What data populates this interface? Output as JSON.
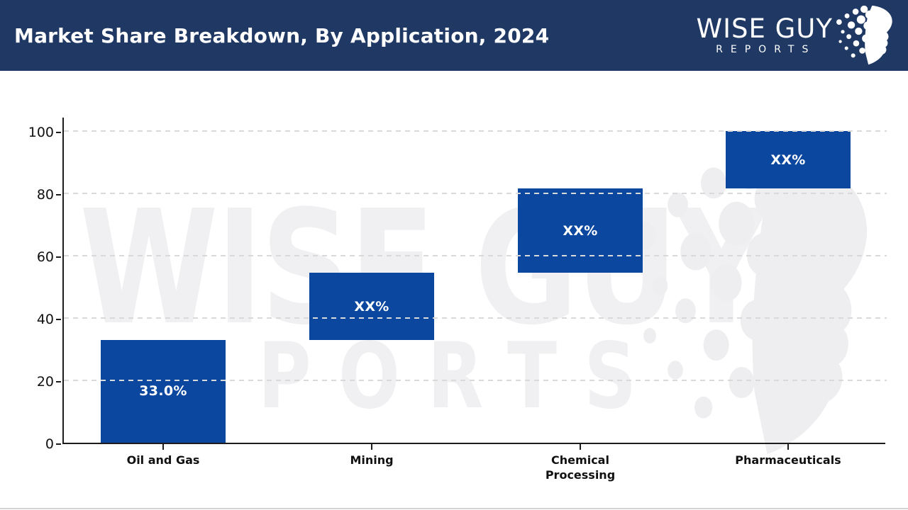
{
  "header": {
    "title": "Market Share Breakdown, By Application, 2024",
    "logo": {
      "line1": "WISE GUY",
      "line2": "REPORTS"
    }
  },
  "watermark": {
    "line1": "WISE GUY",
    "line2": "REPORTS"
  },
  "colors": {
    "header_bg": "#1f3864",
    "bar": "#0b479f",
    "axis": "#1c1c1c",
    "grid": "#d9d9d9",
    "bar_label": "#ffffff",
    "watermark": "#f0f0f2",
    "tick_text": "#111111"
  },
  "chart_data": {
    "type": "bar",
    "subtype": "waterfall-floating-bars",
    "title": "Market Share Breakdown, By Application, 2024",
    "categories": [
      [
        "Oil and Gas"
      ],
      [
        "Mining"
      ],
      [
        "Chemical",
        "Processing"
      ],
      [
        "Pharmaceuticals"
      ]
    ],
    "segments": [
      {
        "category": "Oil and Gas",
        "from": 0,
        "to": 33,
        "label": "33.0%"
      },
      {
        "category": "Mining",
        "from": 33,
        "to": 54.5,
        "label": "XX%"
      },
      {
        "category": "Chemical Processing",
        "from": 54.5,
        "to": 81.5,
        "label": "XX%"
      },
      {
        "category": "Pharmaceuticals",
        "from": 81.5,
        "to": 100,
        "label": "XX%"
      }
    ],
    "ylim": [
      0,
      100
    ],
    "yticks": [
      0,
      20,
      40,
      60,
      80,
      100
    ],
    "grid": "dashed-horizontal",
    "legend": "none"
  }
}
